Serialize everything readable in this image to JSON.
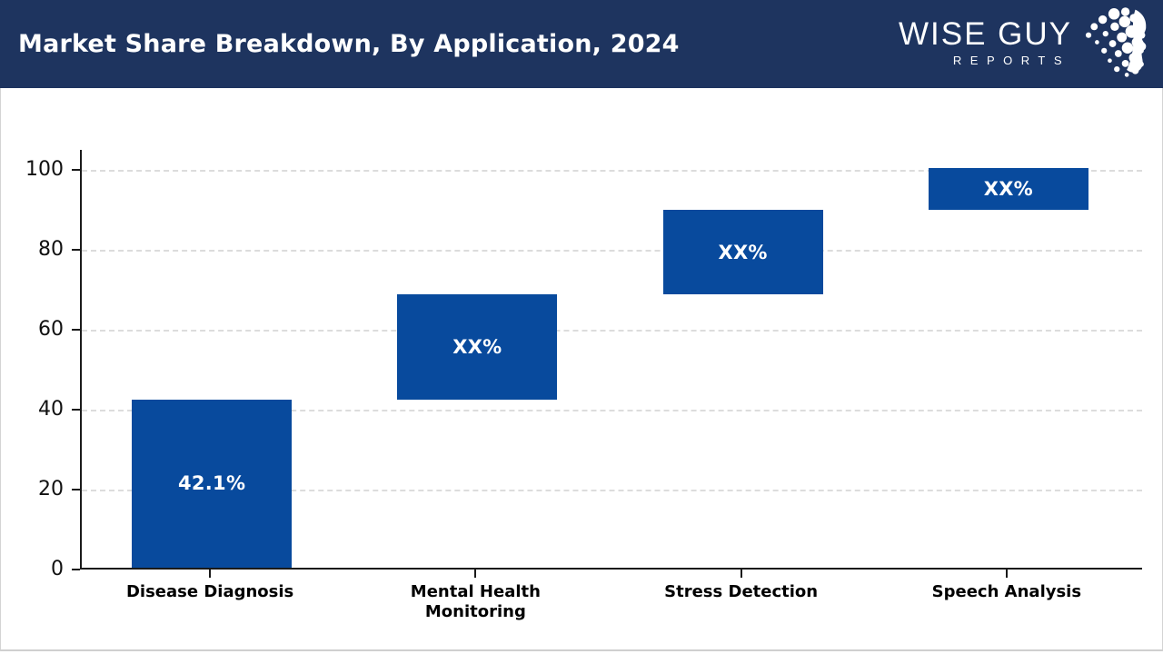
{
  "header": {
    "title": "Market Share Breakdown, By Application, 2024",
    "logo": {
      "line1": "WISE GUY",
      "line2": "REPORTS"
    }
  },
  "watermark": {
    "line1": "WISE GUY.",
    "line2": "REPORTS"
  },
  "colors": {
    "header_bg": "#1e345f",
    "bar": "#084a9d",
    "grid": "#dcdcdc",
    "axis": "#1a1a1a",
    "bar_label": "#ffffff",
    "watermark": "#f2f2f2",
    "logo_dots": "#ffffff"
  },
  "chart_data": {
    "type": "bar",
    "subtype": "waterfall",
    "title": "Market Share Breakdown, By Application, 2024",
    "categories": [
      "Disease Diagnosis",
      "Mental Health\nMonitoring",
      "Stress Detection",
      "Speech Analysis"
    ],
    "segments": [
      {
        "category": "Disease Diagnosis",
        "start": 0,
        "end": 42.1,
        "label": "42.1%"
      },
      {
        "category": "Mental Health Monitoring",
        "start": 42.1,
        "end": 68.4,
        "label": "XX%"
      },
      {
        "category": "Stress Detection",
        "start": 68.4,
        "end": 89.5,
        "label": "XX%"
      },
      {
        "category": "Speech Analysis",
        "start": 89.5,
        "end": 100,
        "label": "XX%"
      }
    ],
    "values_delta": [
      42.1,
      26.3,
      21.1,
      10.5
    ],
    "yticks": [
      0,
      20,
      40,
      60,
      80,
      100
    ],
    "ylim": [
      0,
      105
    ],
    "xlabel": "",
    "ylabel": "",
    "grid": "horizontal-dashed",
    "legend": "none",
    "bar_color": "#084a9d"
  }
}
